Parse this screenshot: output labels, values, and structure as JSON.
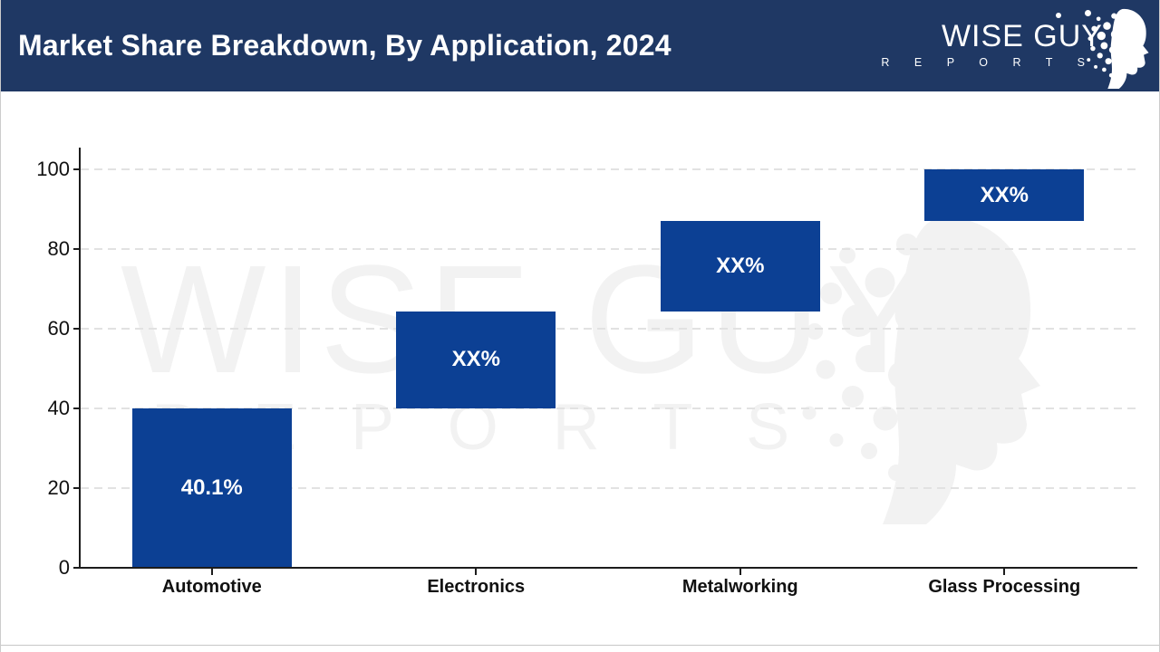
{
  "header": {
    "title": "Market Share Breakdown, By Application, 2024"
  },
  "brand": {
    "name": "WISE GUY",
    "reports": "R E P O R T S",
    "head_icon": "dotted-head-profile"
  },
  "watermark": {
    "line1": "WISE GUY",
    "line2": "R E P O R T S"
  },
  "chart_data": {
    "type": "bar",
    "subtype": "waterfall-breakdown",
    "title": "Market Share Breakdown, By Application, 2024",
    "categories": [
      "Automotive",
      "Electronics",
      "Metalworking",
      "Glass Processing"
    ],
    "segments": [
      {
        "label": "Automotive",
        "display": "40.1%",
        "start": 0,
        "end": 40.1
      },
      {
        "label": "Electronics",
        "display": "XX%",
        "start": 40.1,
        "end": 64.4
      },
      {
        "label": "Metalworking",
        "display": "XX%",
        "start": 64.4,
        "end": 87.0
      },
      {
        "label": "Glass Processing",
        "display": "XX%",
        "start": 87.0,
        "end": 100.0
      }
    ],
    "ylim": [
      0,
      100
    ],
    "yticks": [
      0,
      20,
      40,
      60,
      80,
      100
    ],
    "grid": "horizontal-dashed",
    "legend": "none",
    "colors": {
      "bar": "#0c4094",
      "bar_label": "#ffffff",
      "header_bg": "#1f3864",
      "gridline": "#e2e2e2",
      "axis": "#1c1c1c",
      "text": "#111111",
      "watermark": "#f2f2f2",
      "frame_border": "#cccccc"
    }
  }
}
